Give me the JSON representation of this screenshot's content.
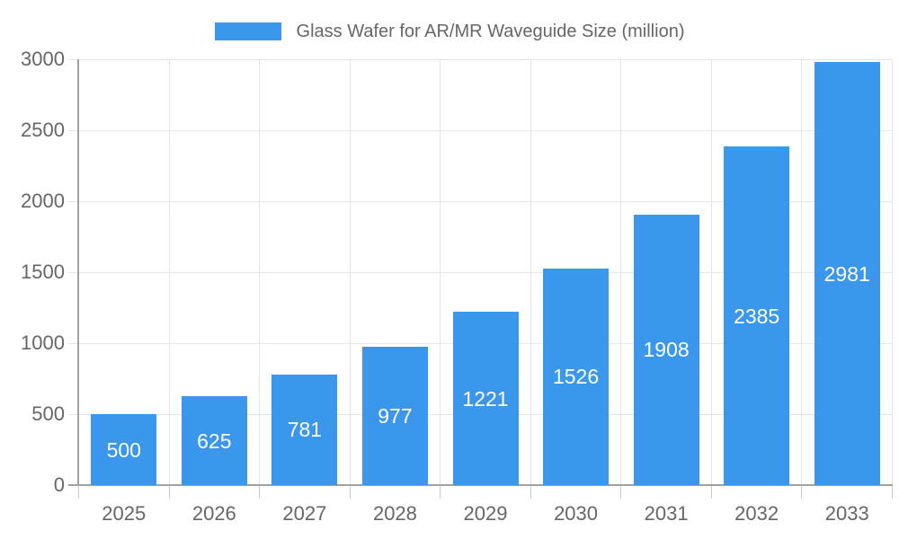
{
  "chart_data": {
    "type": "bar",
    "title": "Glass Wafer for AR/MR Waveguide Size (million)",
    "legend_position": "top",
    "categories": [
      "2025",
      "2026",
      "2027",
      "2028",
      "2029",
      "2030",
      "2031",
      "2032",
      "2033"
    ],
    "values": [
      500,
      625,
      781,
      977,
      1221,
      1526,
      1908,
      2385,
      2981
    ],
    "xlabel": "",
    "ylabel": "",
    "ylim": [
      0,
      3000
    ],
    "yticks": [
      0,
      500,
      1000,
      1500,
      2000,
      2500,
      3000
    ],
    "grid": true,
    "value_label_position": "inside-center",
    "colors": {
      "bar": "#3A97EC",
      "grid": "#E5E5E5",
      "axis": "#A0A0A0",
      "tick": "#C8C8C8",
      "label_text": "#666666",
      "value_text": "#FFFFFF",
      "background": "#FFFFFF"
    }
  }
}
